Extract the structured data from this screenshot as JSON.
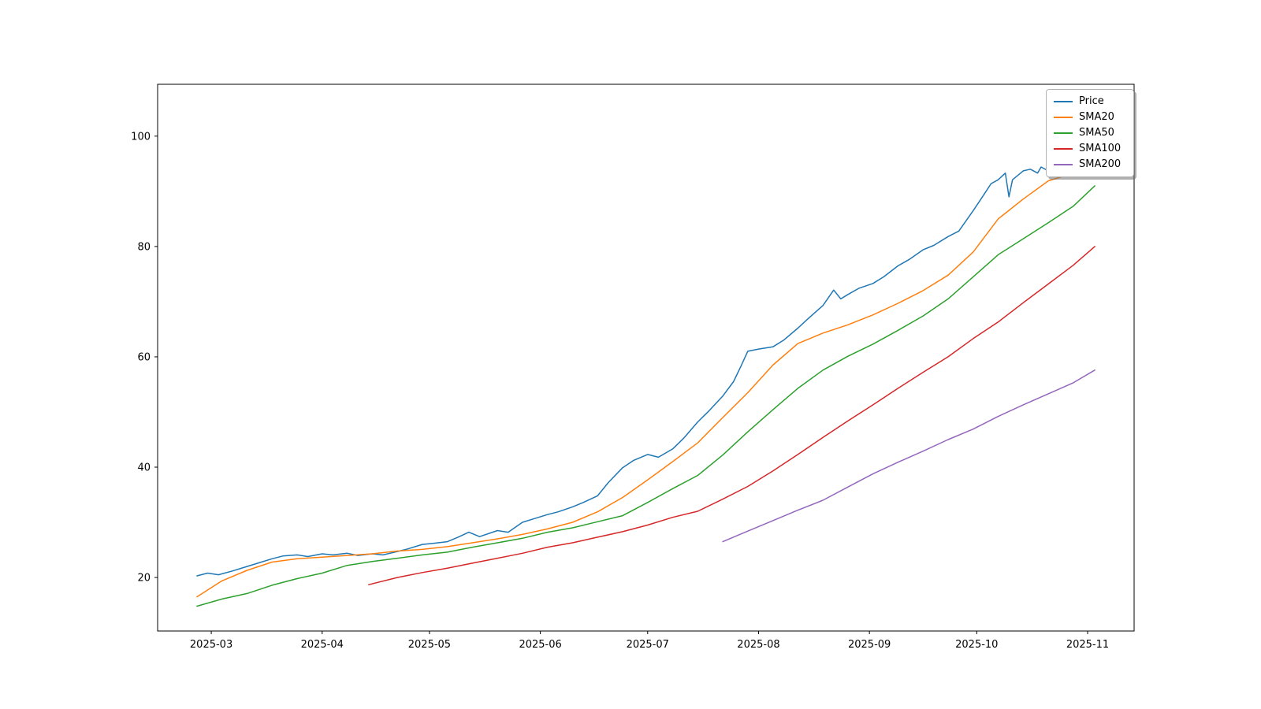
{
  "figure": {
    "background": "#ffffff",
    "plot_background": "#ffffff",
    "axis_color": "#000000",
    "grid": false
  },
  "chart_data": {
    "type": "line",
    "title": "",
    "xlabel": "",
    "ylabel": "",
    "legend_position": "upper right",
    "grid": false,
    "x_axis": {
      "lim": [
        "2025-02-14",
        "2025-11-14"
      ],
      "tick_dates": [
        "2025-03-01",
        "2025-04-01",
        "2025-05-01",
        "2025-06-01",
        "2025-07-01",
        "2025-08-01",
        "2025-09-01",
        "2025-10-01",
        "2025-11-01"
      ],
      "tick_labels": [
        "2025-03",
        "2025-04",
        "2025-05",
        "2025-06",
        "2025-07",
        "2025-08",
        "2025-09",
        "2025-10",
        "2025-11"
      ]
    },
    "y_axis": {
      "lim": [
        10.3,
        109.4
      ],
      "ticks": [
        20,
        40,
        60,
        80,
        100
      ],
      "tick_labels": [
        "20",
        "40",
        "60",
        "80",
        "100"
      ]
    },
    "series": [
      {
        "name": "Price",
        "color": "#1f77b4",
        "dates": [
          "2025-02-25",
          "2025-02-28",
          "2025-03-03",
          "2025-03-07",
          "2025-03-10",
          "2025-03-14",
          "2025-03-18",
          "2025-03-21",
          "2025-03-25",
          "2025-03-28",
          "2025-04-01",
          "2025-04-04",
          "2025-04-08",
          "2025-04-11",
          "2025-04-15",
          "2025-04-18",
          "2025-04-22",
          "2025-04-25",
          "2025-04-29",
          "2025-05-02",
          "2025-05-06",
          "2025-05-09",
          "2025-05-12",
          "2025-05-15",
          "2025-05-20",
          "2025-05-23",
          "2025-05-27",
          "2025-05-30",
          "2025-06-03",
          "2025-06-06",
          "2025-06-10",
          "2025-06-13",
          "2025-06-17",
          "2025-06-20",
          "2025-06-24",
          "2025-06-27",
          "2025-07-01",
          "2025-07-04",
          "2025-07-08",
          "2025-07-11",
          "2025-07-15",
          "2025-07-18",
          "2025-07-22",
          "2025-07-25",
          "2025-07-27",
          "2025-07-29",
          "2025-08-01",
          "2025-08-05",
          "2025-08-08",
          "2025-08-12",
          "2025-08-15",
          "2025-08-19",
          "2025-08-22",
          "2025-08-24",
          "2025-08-26",
          "2025-08-29",
          "2025-09-02",
          "2025-09-05",
          "2025-09-09",
          "2025-09-12",
          "2025-09-16",
          "2025-09-19",
          "2025-09-23",
          "2025-09-26",
          "2025-09-30",
          "2025-10-03",
          "2025-10-05",
          "2025-10-07",
          "2025-10-09",
          "2025-10-10",
          "2025-10-11",
          "2025-10-14",
          "2025-10-16",
          "2025-10-18",
          "2025-10-19",
          "2025-10-21",
          "2025-10-22",
          "2025-10-25",
          "2025-10-28",
          "2025-10-31",
          "2025-11-03"
        ],
        "values": [
          20.3,
          20.8,
          20.5,
          21.2,
          21.8,
          22.6,
          23.4,
          23.9,
          24.1,
          23.8,
          24.3,
          24.1,
          24.4,
          24.0,
          24.3,
          24.1,
          24.7,
          25.2,
          26.0,
          26.2,
          26.5,
          27.3,
          28.2,
          27.4,
          28.5,
          28.2,
          30.0,
          30.6,
          31.4,
          31.9,
          32.8,
          33.6,
          34.8,
          37.2,
          39.9,
          41.2,
          42.3,
          41.8,
          43.3,
          45.2,
          48.2,
          50.1,
          52.9,
          55.5,
          58.2,
          61.0,
          61.4,
          61.8,
          63.0,
          65.2,
          67.0,
          69.3,
          72.1,
          70.5,
          71.3,
          72.4,
          73.3,
          74.5,
          76.5,
          77.6,
          79.4,
          80.2,
          81.8,
          82.8,
          86.5,
          89.4,
          91.4,
          92.1,
          93.3,
          89.0,
          92.1,
          93.7,
          94.0,
          93.3,
          94.4,
          93.7,
          94.7,
          94.2,
          95.0,
          94.6,
          95.5
        ]
      },
      {
        "name": "SMA20",
        "color": "#ff7f0e",
        "dates": [
          "2025-02-25",
          "2025-03-04",
          "2025-03-11",
          "2025-03-18",
          "2025-03-25",
          "2025-04-01",
          "2025-04-08",
          "2025-04-15",
          "2025-04-22",
          "2025-04-29",
          "2025-05-06",
          "2025-05-13",
          "2025-05-20",
          "2025-05-27",
          "2025-06-03",
          "2025-06-10",
          "2025-06-17",
          "2025-06-24",
          "2025-07-01",
          "2025-07-08",
          "2025-07-15",
          "2025-07-22",
          "2025-07-29",
          "2025-08-05",
          "2025-08-12",
          "2025-08-19",
          "2025-08-26",
          "2025-09-02",
          "2025-09-09",
          "2025-09-16",
          "2025-09-23",
          "2025-09-30",
          "2025-10-07",
          "2025-10-14",
          "2025-10-21",
          "2025-10-28",
          "2025-11-03"
        ],
        "values": [
          16.5,
          19.4,
          21.3,
          22.8,
          23.4,
          23.7,
          24.0,
          24.3,
          24.8,
          25.1,
          25.6,
          26.3,
          27.0,
          27.8,
          28.8,
          30.0,
          31.9,
          34.5,
          37.7,
          41.0,
          44.4,
          49.0,
          53.5,
          58.5,
          62.4,
          64.3,
          65.8,
          67.6,
          69.7,
          72.0,
          74.8,
          79.0,
          85.0,
          88.6,
          91.9,
          93.3,
          94.3
        ]
      },
      {
        "name": "SMA50",
        "color": "#2ca02c",
        "dates": [
          "2025-02-25",
          "2025-03-04",
          "2025-03-11",
          "2025-03-18",
          "2025-03-25",
          "2025-04-01",
          "2025-04-08",
          "2025-04-15",
          "2025-04-22",
          "2025-04-29",
          "2025-05-06",
          "2025-05-13",
          "2025-05-20",
          "2025-05-27",
          "2025-06-03",
          "2025-06-10",
          "2025-06-17",
          "2025-06-24",
          "2025-07-01",
          "2025-07-08",
          "2025-07-15",
          "2025-07-22",
          "2025-07-29",
          "2025-08-05",
          "2025-08-12",
          "2025-08-19",
          "2025-08-26",
          "2025-09-02",
          "2025-09-09",
          "2025-09-16",
          "2025-09-23",
          "2025-09-30",
          "2025-10-07",
          "2025-10-14",
          "2025-10-21",
          "2025-10-28",
          "2025-11-03"
        ],
        "values": [
          14.8,
          16.1,
          17.1,
          18.6,
          19.8,
          20.8,
          22.2,
          22.9,
          23.5,
          24.1,
          24.6,
          25.5,
          26.3,
          27.1,
          28.2,
          29.0,
          30.1,
          31.2,
          33.6,
          36.1,
          38.5,
          42.2,
          46.4,
          50.4,
          54.3,
          57.6,
          60.1,
          62.3,
          64.8,
          67.4,
          70.5,
          74.5,
          78.5,
          81.4,
          84.3,
          87.3,
          91.0
        ]
      },
      {
        "name": "SMA100",
        "color": "#d62728",
        "dates": [
          "2025-04-14",
          "2025-04-22",
          "2025-04-29",
          "2025-05-06",
          "2025-05-13",
          "2025-05-20",
          "2025-05-27",
          "2025-06-03",
          "2025-06-10",
          "2025-06-17",
          "2025-06-24",
          "2025-07-01",
          "2025-07-08",
          "2025-07-15",
          "2025-07-22",
          "2025-07-29",
          "2025-08-05",
          "2025-08-12",
          "2025-08-19",
          "2025-08-26",
          "2025-09-02",
          "2025-09-09",
          "2025-09-16",
          "2025-09-23",
          "2025-09-30",
          "2025-10-07",
          "2025-10-14",
          "2025-10-21",
          "2025-10-28",
          "2025-11-03"
        ],
        "values": [
          18.7,
          20.0,
          20.9,
          21.7,
          22.6,
          23.5,
          24.4,
          25.5,
          26.3,
          27.3,
          28.3,
          29.5,
          30.9,
          32.0,
          34.2,
          36.5,
          39.3,
          42.3,
          45.4,
          48.4,
          51.3,
          54.3,
          57.2,
          60.0,
          63.3,
          66.3,
          69.8,
          73.2,
          76.6,
          80.0
        ]
      },
      {
        "name": "SMA200",
        "color": "#9467bd",
        "dates": [
          "2025-07-22",
          "2025-07-29",
          "2025-08-05",
          "2025-08-12",
          "2025-08-19",
          "2025-08-26",
          "2025-09-02",
          "2025-09-09",
          "2025-09-16",
          "2025-09-23",
          "2025-09-30",
          "2025-10-07",
          "2025-10-14",
          "2025-10-21",
          "2025-10-28",
          "2025-11-03"
        ],
        "values": [
          26.5,
          28.4,
          30.3,
          32.2,
          34.0,
          36.4,
          38.8,
          40.9,
          42.9,
          45.0,
          46.9,
          49.2,
          51.3,
          53.3,
          55.3,
          57.6
        ]
      }
    ]
  }
}
